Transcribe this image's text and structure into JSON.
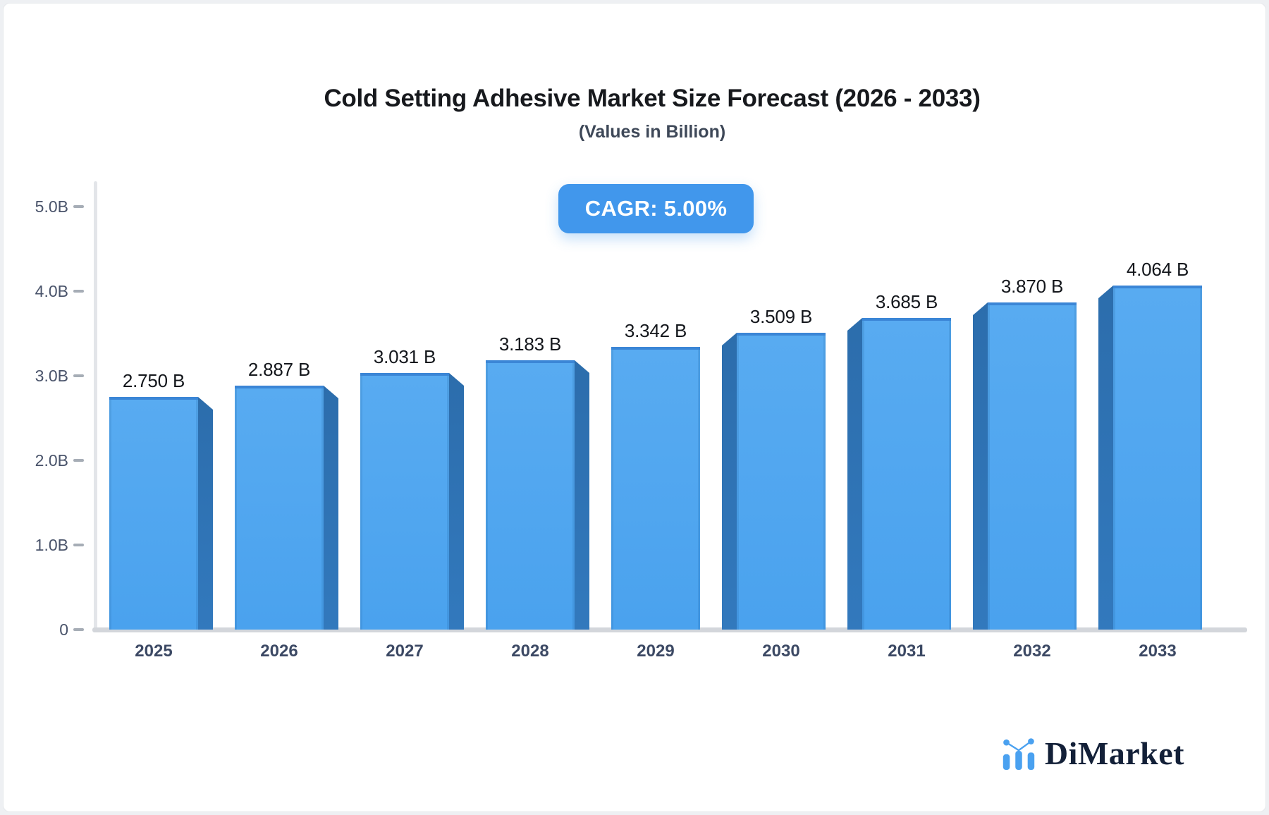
{
  "header": {
    "title": "Cold Setting Adhesive Market Size Forecast (2026 - 2033)",
    "subtitle": "(Values in Billion)"
  },
  "badge": {
    "label": "CAGR: 5.00%"
  },
  "chart_data": {
    "type": "bar",
    "title": "Cold Setting Adhesive Market Size Forecast (2026 - 2033)",
    "subtitle": "(Values in Billion)",
    "unit": "Billion",
    "categories": [
      "2025",
      "2026",
      "2027",
      "2028",
      "2029",
      "2030",
      "2031",
      "2032",
      "2033"
    ],
    "values": [
      2.75,
      2.887,
      3.031,
      3.183,
      3.342,
      3.509,
      3.685,
      3.87,
      4.064
    ],
    "value_labels": [
      "2.750 B",
      "2.887 B",
      "3.031 B",
      "3.183 B",
      "3.342 B",
      "3.509 B",
      "3.685 B",
      "3.870 B",
      "4.064 B"
    ],
    "y_ticks": [
      {
        "label": "5.0B",
        "value": 5.0
      },
      {
        "label": "4.0B",
        "value": 4.0
      },
      {
        "label": "3.0B",
        "value": 3.0
      },
      {
        "label": "2.0B",
        "value": 2.0
      },
      {
        "label": "1.0B",
        "value": 1.0
      },
      {
        "label": "0",
        "value": 0.0
      }
    ],
    "ylim": [
      0,
      5
    ],
    "grid": false,
    "legend": false,
    "bar_style": "3d-bevel",
    "annotation": "CAGR: 5.00%"
  },
  "logo": {
    "text": "DiMarket",
    "icon": "bar-chart-logo-icon"
  },
  "colors": {
    "accent": "#4197ec",
    "bar_face_top": "#58abf1",
    "bar_face_bottom": "#4aa2ee",
    "bar_top_edge": "#3b86d6",
    "bar_side": "#2f74b6",
    "axis_line": "#e3e5e9",
    "baseline": "#d3d6db",
    "tick": "#a6adb6",
    "title_text": "#17191d",
    "subtitle_text": "#3e4858",
    "axis_text": "#49536a",
    "category_text": "#3c4964",
    "logo_navy": "#132038",
    "logo_blue": "#4aa1f0"
  }
}
